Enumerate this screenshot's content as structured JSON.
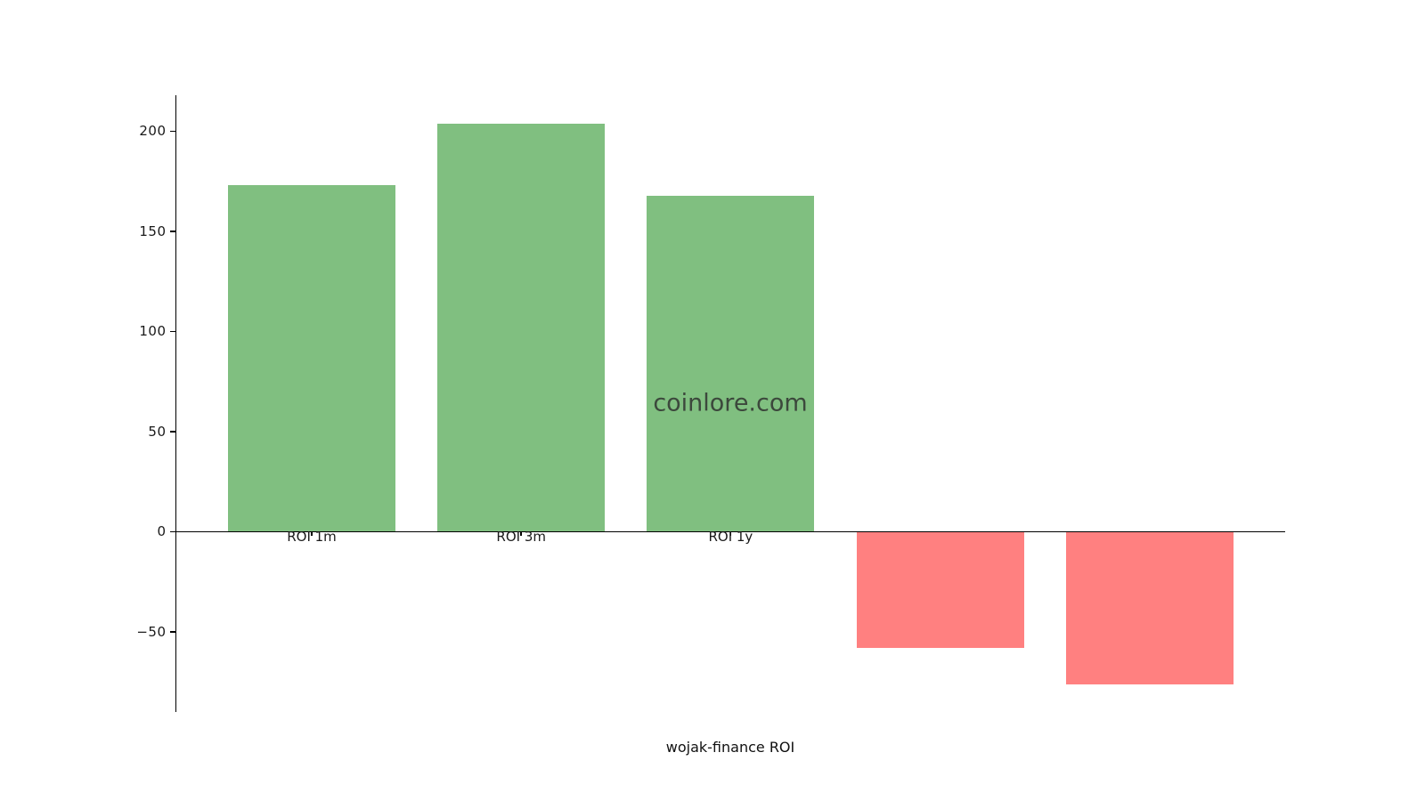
{
  "page": {
    "background": "#ffffff"
  },
  "chart_data": {
    "type": "bar",
    "title": "wojak-finance ROI",
    "watermark": "coinlore.com",
    "categories": [
      "ROI 1m",
      "ROI 3m",
      "ROI 1y",
      "",
      ""
    ],
    "values": [
      173,
      204,
      168,
      -58,
      -76
    ],
    "bar_colors": [
      "#80bf80",
      "#80bf80",
      "#80bf80",
      "#ff8080",
      "#ff8080"
    ],
    "positive_color": "#80bf80",
    "negative_color": "#ff8080",
    "axis_color": "#000000",
    "tick_label_color": "#1a1a1a",
    "yticks": [
      200,
      150,
      100,
      50,
      0,
      -50
    ],
    "ytick_labels": [
      "200",
      "150",
      "100",
      "50",
      "0",
      "−50"
    ],
    "ylim": [
      -90,
      218
    ],
    "xlabel": "",
    "ylabel": "",
    "grid": false,
    "legend": "none"
  }
}
